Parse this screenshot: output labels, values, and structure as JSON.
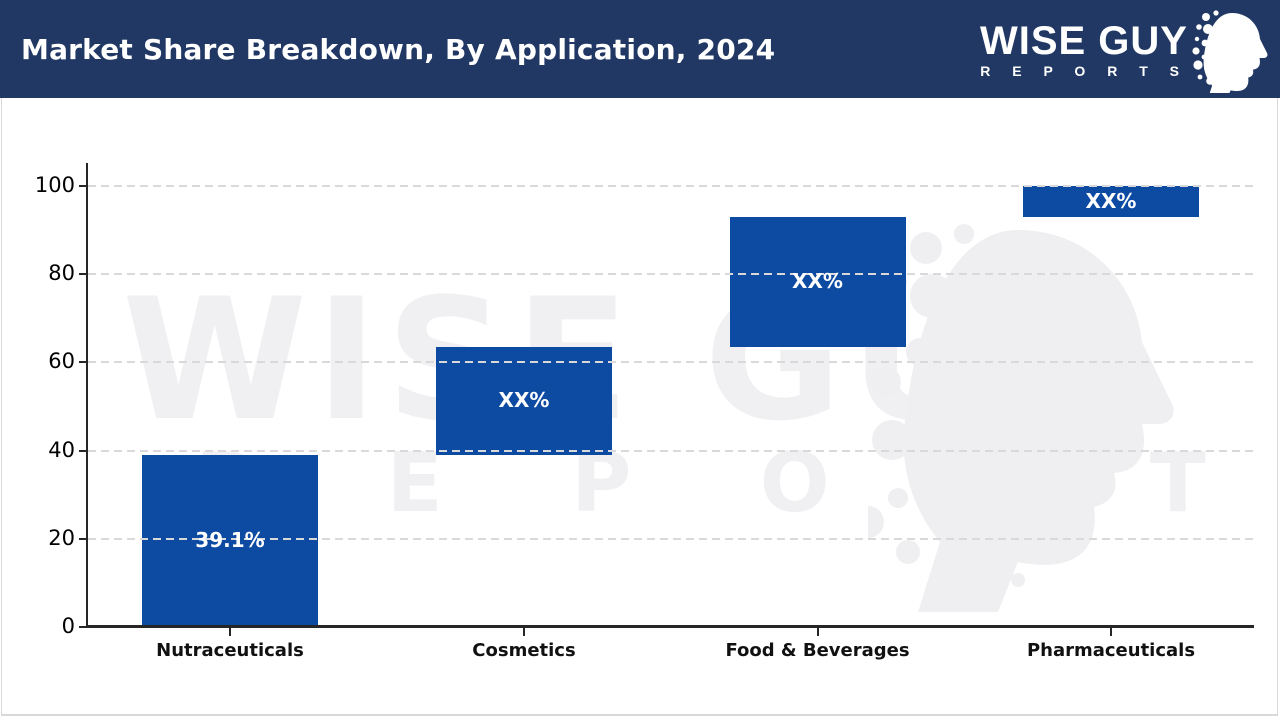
{
  "header": {
    "title": "Market Share Breakdown, By Application, 2024",
    "logo_line1": "WISE GUY",
    "logo_line2": "R E P O R T S"
  },
  "watermark": {
    "line1": "WISE GUY",
    "line2": "R E P O R T S"
  },
  "colors": {
    "header_bg": "#213864",
    "bar_blue": "#0d4aa2",
    "grid_gray": "#d9d9d9",
    "axis_dark": "#262626",
    "watermark_gray": "#f0f0f2",
    "bar_label_white": "#ffffff"
  },
  "chart_data": {
    "type": "bar",
    "subtype": "waterfall",
    "title": "Market Share Breakdown, By Application, 2024",
    "categories": [
      "Nutraceuticals",
      "Cosmetics",
      "Food & Beverages",
      "Pharmaceuticals"
    ],
    "series": [
      {
        "name": "Market Share %",
        "starts": [
          0,
          39.1,
          63.6,
          92.9
        ],
        "values": [
          39.1,
          24.5,
          29.3,
          7.1
        ]
      }
    ],
    "bar_labels": [
      "39.1%",
      "XX%",
      "XX%",
      "XX%"
    ],
    "xlabel": "",
    "ylabel": "",
    "ylim": [
      0,
      100
    ],
    "yticks": [
      0,
      20,
      40,
      60,
      80,
      100
    ],
    "grid": "dashed-horizontal",
    "legend": false
  }
}
